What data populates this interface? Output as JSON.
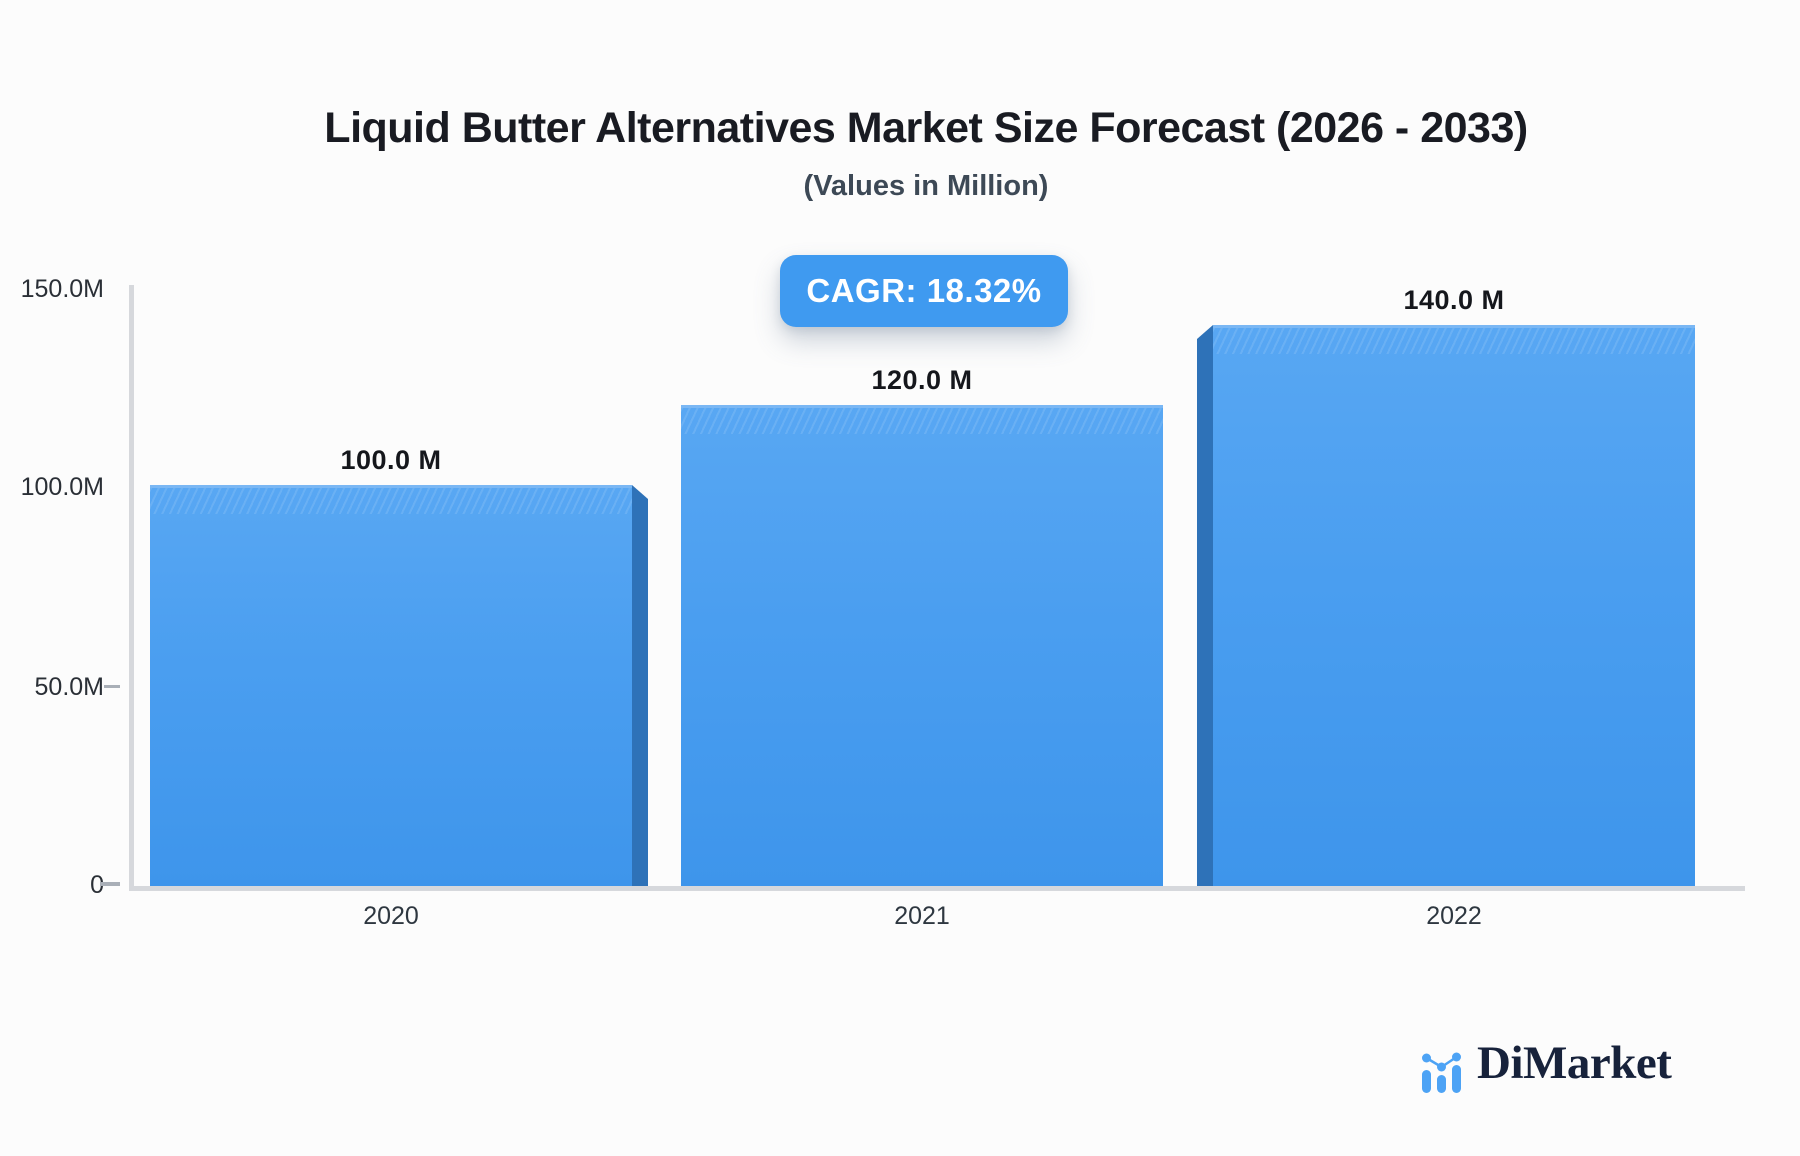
{
  "title": "Liquid Butter Alternatives Market Size Forecast (2026 - 2033)",
  "subtitle": "(Values in Million)",
  "badge": {
    "label": "CAGR: 18.32%"
  },
  "y_axis": {
    "tick_150": "150.0M",
    "tick_100": "100.0M",
    "tick_50": "50.0M",
    "tick_0": "0"
  },
  "bars": [
    {
      "category": "2020",
      "value": 100.0,
      "value_label": "100.0 M"
    },
    {
      "category": "2021",
      "value": 120.0,
      "value_label": "120.0 M"
    },
    {
      "category": "2022",
      "value": 140.0,
      "value_label": "140.0 M"
    }
  ],
  "logo": {
    "text": "DiMarket",
    "icon": "bar-line-chart-icon"
  },
  "colors": {
    "bar_fill": "#4a9ef0",
    "bar_side": "#2e72b8",
    "bar_top_highlight": "#7ab7f4",
    "badge_background": "#3f9af0",
    "axis_line": "#d6d8dc",
    "title_text": "#191b22",
    "logo_blue": "#4da3f5",
    "logo_navy": "#17223b"
  },
  "chart_data": {
    "type": "bar",
    "categories": [
      "2020",
      "2021",
      "2022"
    ],
    "values": [
      100.0,
      120.0,
      140.0
    ],
    "value_labels": [
      "100.0 M",
      "120.0 M",
      "140.0 M"
    ],
    "title": "Liquid Butter Alternatives Market Size Forecast (2026 - 2033)",
    "subtitle": "(Values in Million)",
    "annotations": [
      "CAGR: 18.32%"
    ],
    "unit": "Million",
    "xlabel": "",
    "ylabel": "",
    "ylim": [
      0,
      150
    ],
    "y_tick_labels": [
      "0",
      "50.0M",
      "100.0M",
      "150.0M"
    ],
    "grid": false,
    "legend": false,
    "style": "3d-effect blue bars"
  }
}
